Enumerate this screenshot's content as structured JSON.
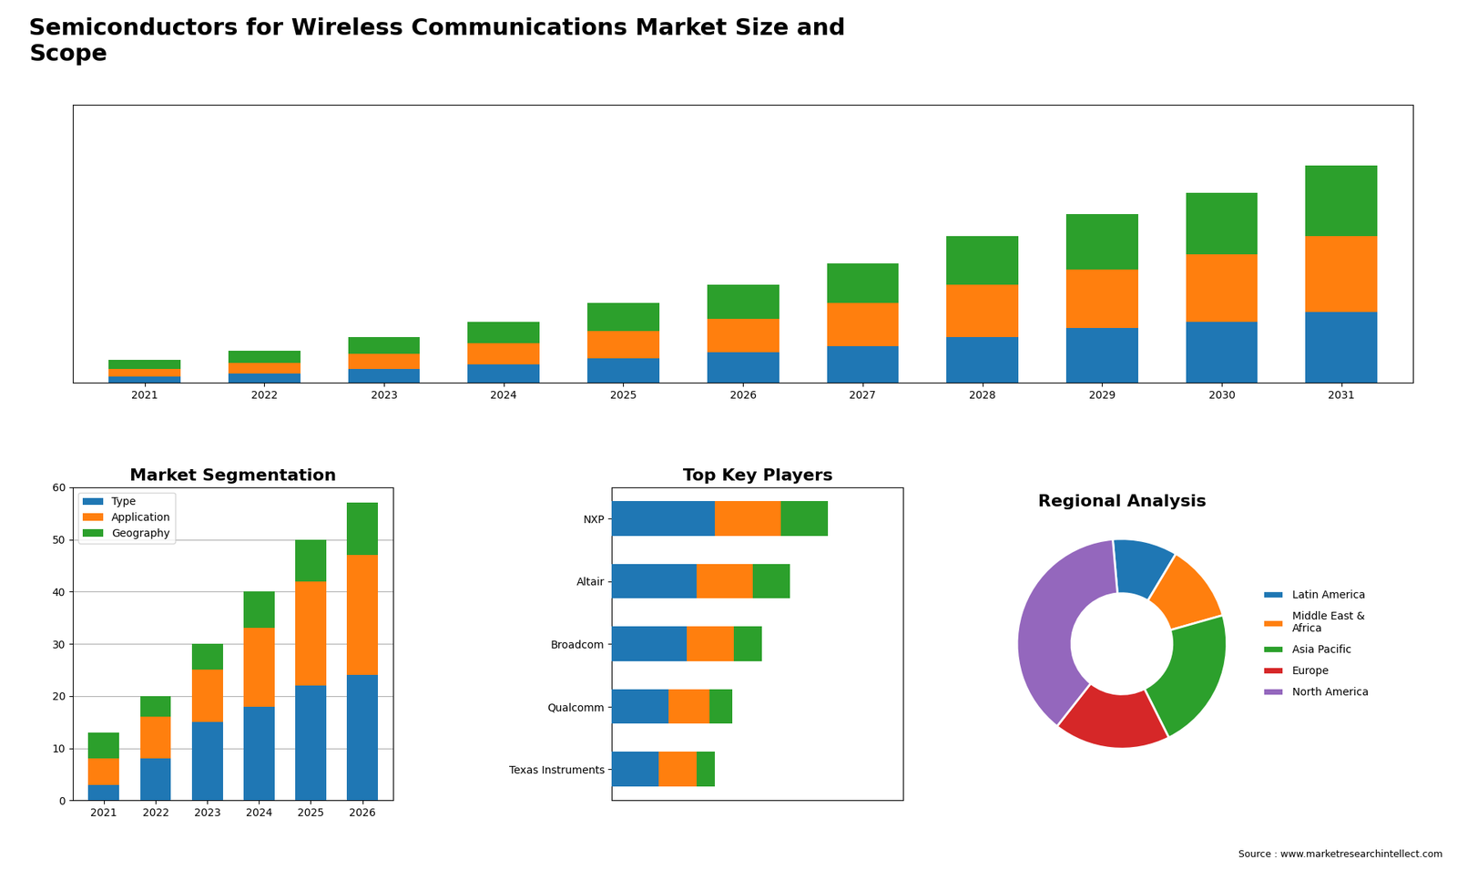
{
  "title": "Semiconductors for Wireless Communications Market Size and\nScope",
  "annotations": [
    "Source : www.marketresearchintellect.com"
  ],
  "chart_data": [
    {
      "type": "bar",
      "stacked": true,
      "tick_labels": "x",
      "categories": [
        "2021",
        "2022",
        "2023",
        "2024",
        "2025",
        "2026",
        "2027",
        "2028",
        "2029",
        "2030",
        "2031"
      ],
      "series": [
        {
          "values": [
            2,
            3,
            4.5,
            6,
            8,
            10,
            12,
            15,
            18,
            20,
            23
          ]
        },
        {
          "values": [
            2.5,
            3.5,
            5,
            7,
            9,
            11,
            14,
            17,
            19,
            22,
            25
          ]
        },
        {
          "values": [
            3,
            4,
            5.5,
            7,
            9,
            11,
            13,
            16,
            18,
            20,
            23
          ]
        }
      ],
      "ylim": [
        0,
        90.88
      ],
      "yticks": []
    },
    {
      "type": "bar",
      "stacked": true,
      "title": "Market Segmentation",
      "categories": [
        "2021",
        "2022",
        "2023",
        "2024",
        "2025",
        "2026"
      ],
      "series": [
        {
          "name": "Type",
          "values": [
            3,
            8,
            15,
            18,
            22,
            24
          ]
        },
        {
          "name": "Application",
          "values": [
            5,
            8,
            10,
            15,
            20,
            23
          ]
        },
        {
          "name": "Geography",
          "values": [
            5,
            4,
            5,
            7,
            8,
            10
          ]
        }
      ],
      "ylim": [
        0,
        60
      ],
      "yticks": [
        0,
        10,
        20,
        30,
        40,
        50,
        60
      ],
      "grid": true,
      "legend": "upper left"
    },
    {
      "type": "bar",
      "stacked": true,
      "orientation": "horizontal",
      "title": "Top Key Players",
      "tick_labels": "y",
      "categories": [
        "NXP",
        "Altair",
        "Broadcom",
        "Qualcomm",
        "Texas Instruments"
      ],
      "series": [
        {
          "values": [
            5.5,
            4.5,
            4.0,
            3.0,
            2.5
          ]
        },
        {
          "values": [
            3.5,
            3.0,
            2.5,
            2.2,
            2.0
          ]
        },
        {
          "values": [
            2.5,
            2.0,
            1.5,
            1.2,
            1.0
          ]
        }
      ],
      "xlim": [
        0,
        15.525
      ],
      "xticks": []
    },
    {
      "type": "pie",
      "title": "Regional Analysis",
      "legend": "center left",
      "categories": [
        "Latin America",
        "Middle East &\nAfrica",
        "Asia Pacific",
        "Europe",
        "North America"
      ],
      "values": [
        10,
        12,
        22,
        18,
        38
      ]
    }
  ]
}
